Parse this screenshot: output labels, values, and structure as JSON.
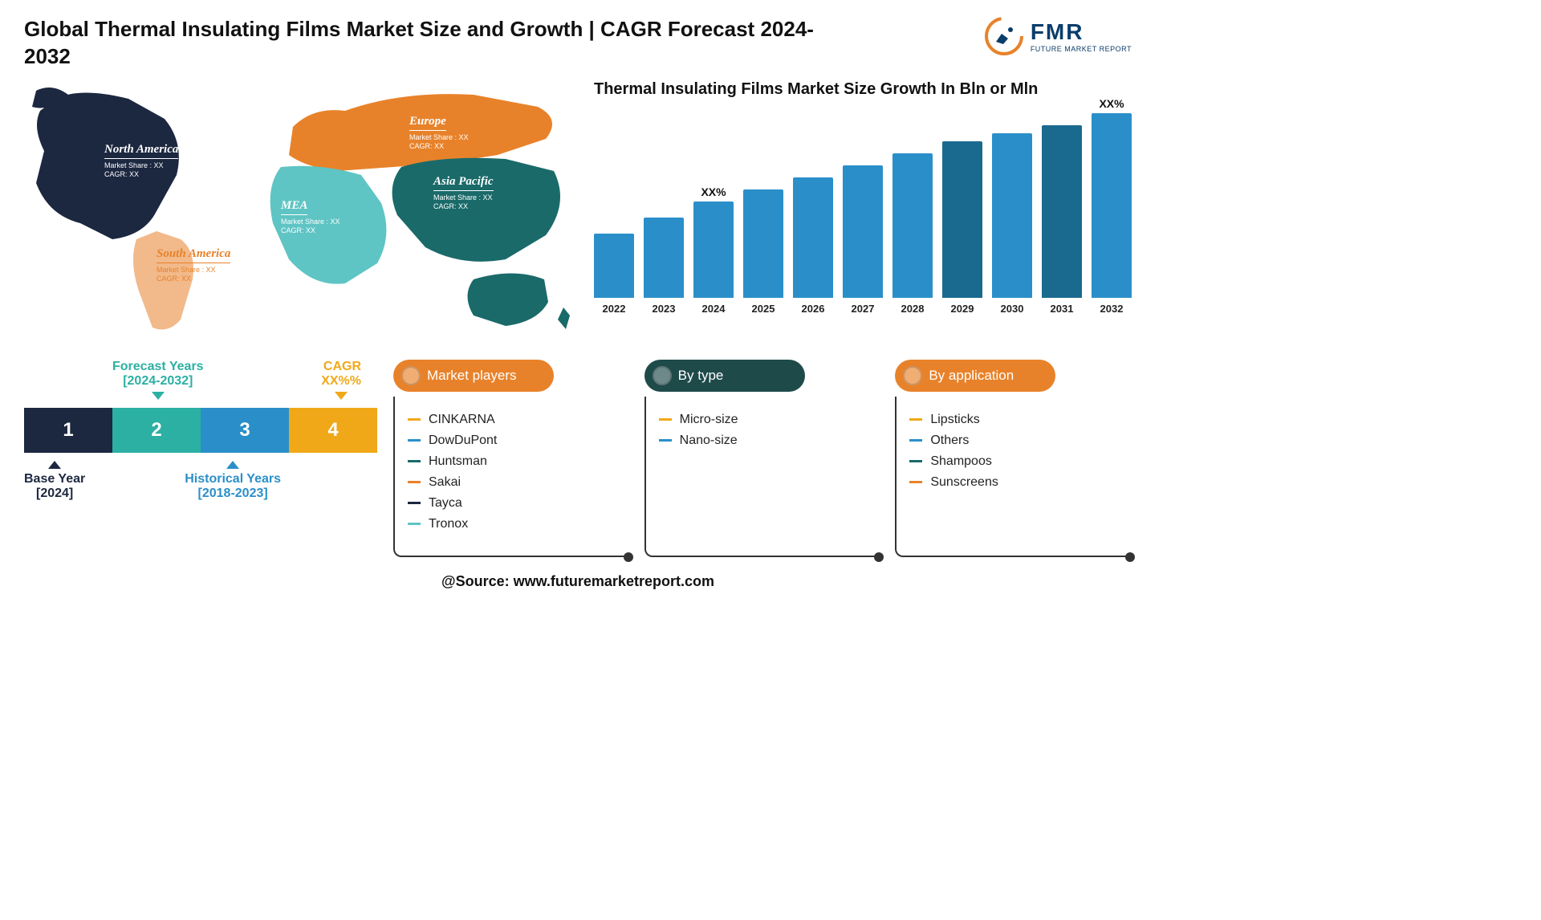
{
  "title": "Global Thermal Insulating Films Market Size and Growth | CAGR Forecast 2024-2032",
  "logo": {
    "fmr": "FMR",
    "sub": "FUTURE MARKET REPORT"
  },
  "map": {
    "regions": [
      {
        "key": "na",
        "name": "North America",
        "share": "Market Share : XX",
        "cagr": "CAGR: XX",
        "color": "#1c2740"
      },
      {
        "key": "sa",
        "name": "South America",
        "share": "Market Share : XX",
        "cagr": "CAGR: XX",
        "color": "#f2b98a"
      },
      {
        "key": "eu",
        "name": "Europe",
        "share": "Market Share : XX",
        "cagr": "CAGR: XX",
        "color": "#e8822a"
      },
      {
        "key": "mea",
        "name": "MEA",
        "share": "Market Share : XX",
        "cagr": "CAGR: XX",
        "color": "#5fc4c4"
      },
      {
        "key": "ap",
        "name": "Asia Pacific",
        "share": "Market Share : XX",
        "cagr": "CAGR: XX",
        "color": "#1a6a6a"
      }
    ]
  },
  "chart": {
    "title": "Thermal Insulating Films Market Size Growth In Bln or Mln",
    "type": "bar",
    "years": [
      "2022",
      "2023",
      "2024",
      "2025",
      "2026",
      "2027",
      "2028",
      "2029",
      "2030",
      "2031",
      "2032"
    ],
    "values": [
      80,
      100,
      120,
      135,
      150,
      165,
      180,
      195,
      205,
      215,
      230
    ],
    "dark_indices": [
      7,
      9
    ],
    "top_labels": {
      "2": "XX%",
      "10": "XX%"
    },
    "bar_color": "#2a8fc9",
    "bar_dark_color": "#1a6a8f",
    "label_color": "#222",
    "label_fontsize": 13
  },
  "timeline": {
    "forecast_label": "Forecast Years",
    "forecast_range": "[2024-2032]",
    "cagr_label": "CAGR",
    "cagr_value": "XX%%",
    "base_label": "Base Year",
    "base_range": "[2024]",
    "hist_label": "Historical Years",
    "hist_range": "[2018-2023]",
    "segs": [
      "1",
      "2",
      "3",
      "4"
    ],
    "colors": {
      "base": "#1c2740",
      "forecast": "#2bb0a3",
      "hist": "#2a8fc9",
      "cagr": "#f0a818"
    }
  },
  "panels": [
    {
      "title": "Market players",
      "header_color": "#e8822a",
      "items": [
        {
          "label": "CINKARNA",
          "tick": "#f0a818"
        },
        {
          "label": "DowDuPont",
          "tick": "#2a8fc9"
        },
        {
          "label": "Huntsman",
          "tick": "#1a6a6a"
        },
        {
          "label": "Sakai",
          "tick": "#e8822a"
        },
        {
          "label": "Tayca",
          "tick": "#1c2740"
        },
        {
          "label": "Tronox",
          "tick": "#5fc4c4"
        }
      ]
    },
    {
      "title": "By type",
      "header_color": "#1f4a4a",
      "items": [
        {
          "label": "Micro-size",
          "tick": "#f0a818"
        },
        {
          "label": "Nano-size",
          "tick": "#2a8fc9"
        }
      ]
    },
    {
      "title": "By application",
      "header_color": "#e8822a",
      "items": [
        {
          "label": "Lipsticks",
          "tick": "#f0a818"
        },
        {
          "label": "Others",
          "tick": "#2a8fc9"
        },
        {
          "label": "Shampoos",
          "tick": "#1a6a6a"
        },
        {
          "label": "Sunscreens",
          "tick": "#e8822a"
        }
      ]
    }
  ],
  "source": "@Source: www.futuremarketreport.com"
}
